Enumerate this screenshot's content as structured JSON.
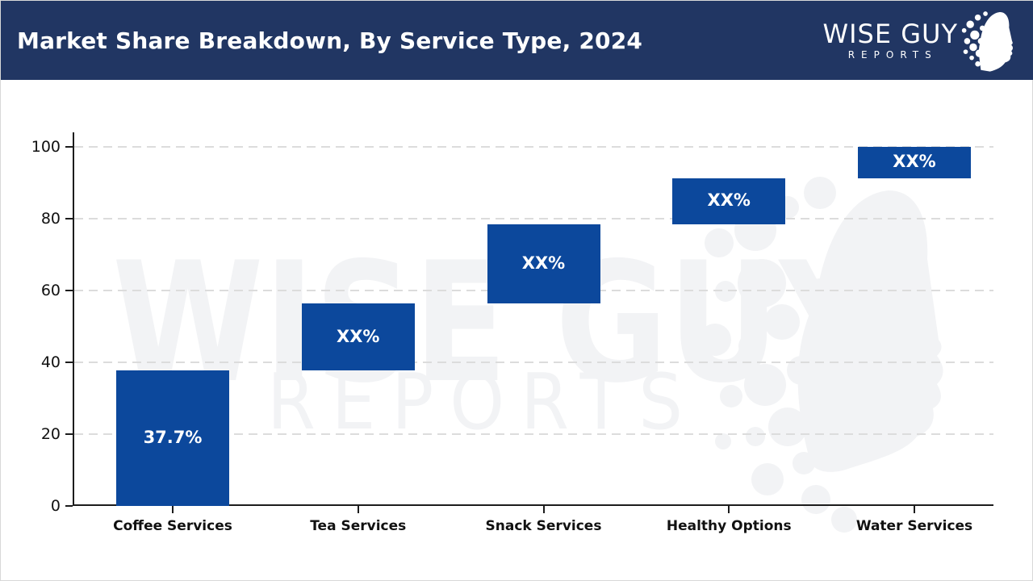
{
  "header": {
    "title": "Market Share Breakdown, By Service Type, 2024",
    "bg_color": "#213663",
    "logo": {
      "line1": "WISE GUY",
      "line2": "REPORTS"
    }
  },
  "watermark": {
    "line1": "WISE GUY",
    "line2": "REPORTS"
  },
  "chart_data": {
    "type": "bar",
    "subtype": "waterfall",
    "title": "Market Share Breakdown, By Service Type, 2024",
    "categories": [
      "Coffee Services",
      "Tea Services",
      "Snack Services",
      "Healthy Options",
      "Water Services"
    ],
    "bars": [
      {
        "category": "Coffee Services",
        "label": "37.7%",
        "start": 0,
        "end": 37.7
      },
      {
        "category": "Tea Services",
        "label": "XX%",
        "start": 37.7,
        "end": 56.3
      },
      {
        "category": "Snack Services",
        "label": "XX%",
        "start": 56.3,
        "end": 78.4
      },
      {
        "category": "Healthy Options",
        "label": "XX%",
        "start": 78.4,
        "end": 91.3
      },
      {
        "category": "Water Services",
        "label": "XX%",
        "start": 91.3,
        "end": 100
      }
    ],
    "y_ticks": [
      0,
      20,
      40,
      60,
      80,
      100
    ],
    "ylim": [
      0,
      104
    ],
    "xlabel": "",
    "ylabel": "",
    "grid": "dashed horizontal",
    "legend": "none",
    "bar_color": "#0c489c",
    "grid_color": "#dcdcdc",
    "axis_color": "#1c1c1c",
    "value_label_color": "#ffffff"
  }
}
